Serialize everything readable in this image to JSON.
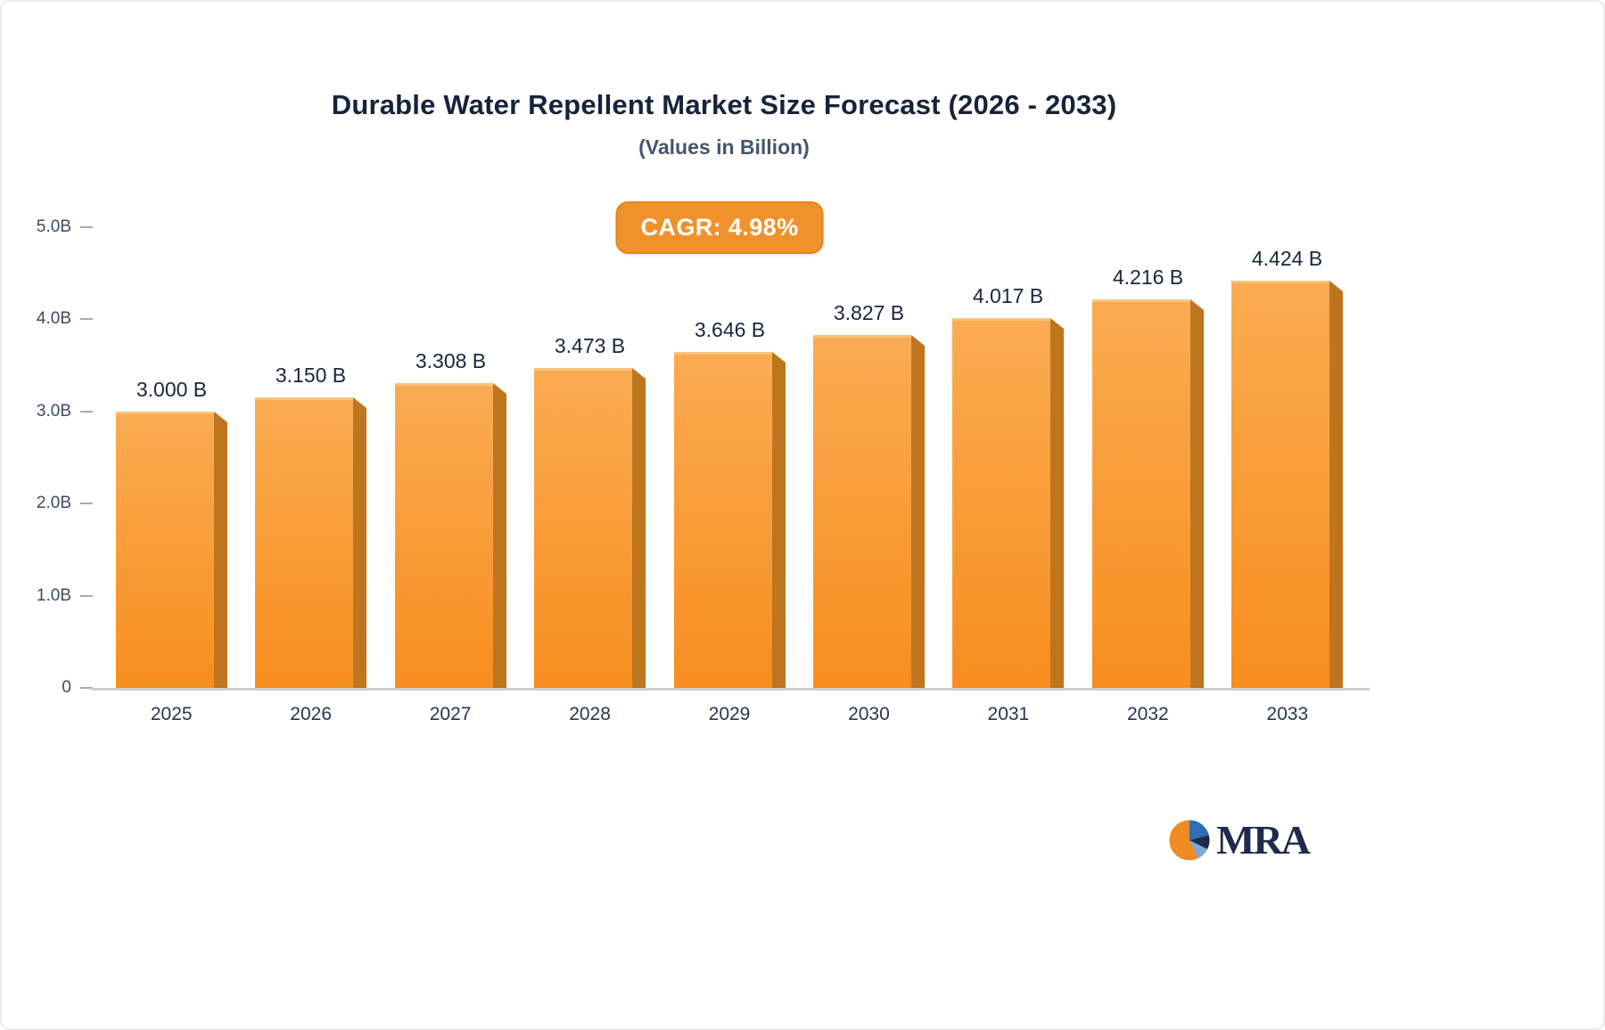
{
  "title": "Durable Water Repellent Market Size Forecast (2026 - 2033)",
  "subtitle": "(Values in Billion)",
  "badge": {
    "label": "CAGR: 4.98%",
    "bg_color": "#F0922B"
  },
  "logo": {
    "text": "MRA",
    "icon": "pie-icon",
    "colors": {
      "orange": "#ED8C23",
      "blue": "#2C6FB5",
      "navy": "#1E2B4E"
    }
  },
  "chart_data": {
    "type": "bar",
    "title": "Durable Water Repellent Market Size Forecast (2026 - 2033)",
    "subtitle": "(Values in Billion)",
    "categories": [
      "2025",
      "2026",
      "2027",
      "2028",
      "2029",
      "2030",
      "2031",
      "2032",
      "2033"
    ],
    "values": [
      3.0,
      3.15,
      3.308,
      3.473,
      3.646,
      3.827,
      4.017,
      4.216,
      4.424
    ],
    "value_labels": [
      "3.000 B",
      "3.150 B",
      "3.308 B",
      "3.473 B",
      "3.646 B",
      "3.827 B",
      "4.017 B",
      "4.216 B",
      "4.424 B"
    ],
    "xlabel": "",
    "ylabel": "",
    "ylim": [
      0,
      5
    ],
    "yticks": [
      {
        "value": 0,
        "label": "0"
      },
      {
        "value": 1,
        "label": "1.0B"
      },
      {
        "value": 2,
        "label": "2.0B"
      },
      {
        "value": 3,
        "label": "3.0B"
      },
      {
        "value": 4,
        "label": "4.0B"
      },
      {
        "value": 5,
        "label": "5.0B"
      }
    ],
    "grid": false,
    "legend": "none",
    "annotation": "CAGR: 4.98%",
    "bar_colors": {
      "face_top": "#FAAB52",
      "face_bottom": "#F78E1E",
      "side": "#BE751E",
      "top_highlight": "#FCC27E"
    }
  }
}
